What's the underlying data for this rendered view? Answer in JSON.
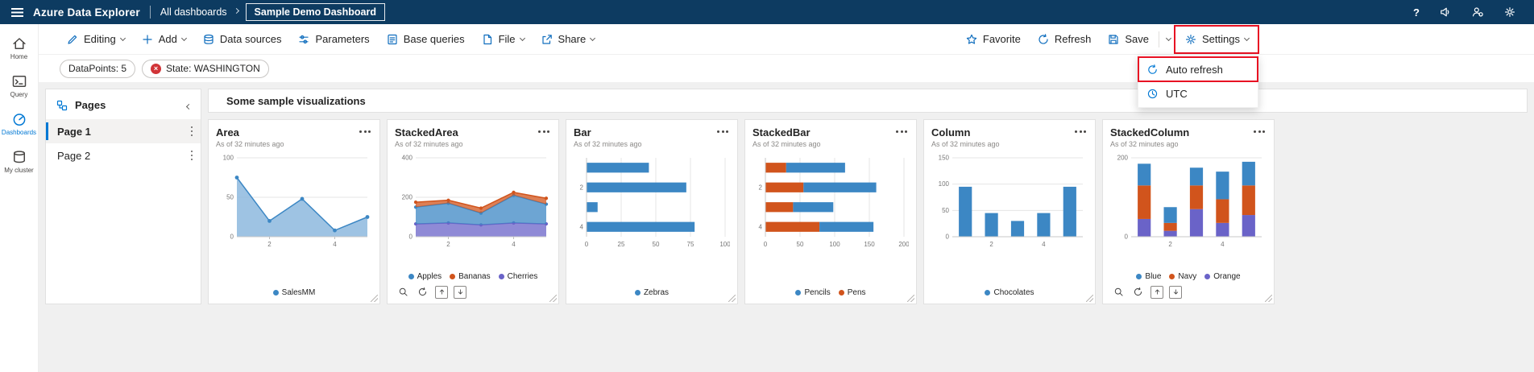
{
  "topbar": {
    "app_title": "Azure Data Explorer",
    "breadcrumb": {
      "root": "All dashboards",
      "current": "Sample Demo Dashboard"
    },
    "right_icons": [
      {
        "name": "help",
        "glyph": "?"
      },
      {
        "name": "feedback",
        "icon": "feedback"
      },
      {
        "name": "account-settings",
        "icon": "account"
      },
      {
        "name": "settings-gear",
        "icon": "gear"
      }
    ]
  },
  "rail": {
    "items": [
      {
        "label": "Home",
        "icon": "home",
        "active": false
      },
      {
        "label": "Query",
        "icon": "query",
        "active": false
      },
      {
        "label": "Dashboards",
        "icon": "dashboards",
        "active": true
      },
      {
        "label": "My cluster",
        "icon": "cluster",
        "active": false
      }
    ]
  },
  "commandbar": {
    "left": [
      {
        "label": "Editing",
        "icon": "pencil",
        "chevron": true
      },
      {
        "label": "Add",
        "icon": "plus",
        "chevron": true
      },
      {
        "label": "Data sources",
        "icon": "database",
        "chevron": false
      },
      {
        "label": "Parameters",
        "icon": "parameters",
        "chevron": false
      },
      {
        "label": "Base queries",
        "icon": "basequeries",
        "chevron": false
      },
      {
        "label": "File",
        "icon": "file",
        "chevron": true
      },
      {
        "label": "Share",
        "icon": "share",
        "chevron": true
      }
    ],
    "right": [
      {
        "label": "Favorite",
        "icon": "star",
        "chevron": false
      },
      {
        "label": "Refresh",
        "icon": "refresh",
        "chevron": false
      },
      {
        "label": "Save",
        "icon": "save",
        "chevron": false,
        "split": true
      },
      {
        "label": "Settings",
        "icon": "gear",
        "chevron": true,
        "highlighted": true
      }
    ]
  },
  "filters": [
    {
      "label": "DataPoints: 5",
      "dismiss": false
    },
    {
      "label": "State: WASHINGTON",
      "dismiss": true
    }
  ],
  "settings_menu": {
    "items": [
      {
        "label": "Auto refresh",
        "icon": "refresh",
        "highlighted": true
      },
      {
        "label": "UTC",
        "icon": "clock",
        "highlighted": false
      }
    ]
  },
  "pages": {
    "title": "Pages",
    "items": [
      {
        "label": "Page 1",
        "active": true
      },
      {
        "label": "Page 2",
        "active": false
      }
    ]
  },
  "text_tile": {
    "text": "Some sample visualizations"
  },
  "tiles": [
    {
      "title": "Area",
      "subtitle": "As of 32 minutes ago",
      "footer_tools": false,
      "legend": [
        {
          "label": "SalesMM",
          "color": "#3c87c4"
        }
      ],
      "chart": {
        "type": "area",
        "xlim": [
          1,
          5
        ],
        "ylim": [
          0,
          100
        ],
        "x": [
          1,
          2,
          3,
          4,
          5
        ],
        "x_ticks": [
          2,
          4
        ],
        "y_ticks": [
          0,
          50,
          100
        ],
        "series": [
          {
            "name": "SalesMM",
            "color": "#3c87c4",
            "fill": "#8db9de",
            "values": [
              75,
              20,
              48,
              8,
              25
            ]
          }
        ]
      }
    },
    {
      "title": "StackedArea",
      "subtitle": "As of 32 minutes ago",
      "footer_tools": true,
      "legend": [
        {
          "label": "Apples",
          "color": "#3c87c4"
        },
        {
          "label": "Bananas",
          "color": "#d1541c"
        },
        {
          "label": "Cherries",
          "color": "#6a63c8"
        }
      ],
      "chart": {
        "type": "stackedarea",
        "xlim": [
          1,
          5
        ],
        "ylim": [
          0,
          400
        ],
        "x": [
          1,
          2,
          3,
          4,
          5
        ],
        "x_ticks": [
          2,
          4
        ],
        "y_ticks": [
          0,
          200,
          400
        ],
        "series": [
          {
            "name": "Cherries",
            "color": "#6a63c8",
            "values": [
              65,
              70,
              60,
              70,
              65
            ]
          },
          {
            "name": "Apples",
            "color": "#3c87c4",
            "values": [
              85,
              100,
              60,
              140,
              100
            ]
          },
          {
            "name": "Bananas",
            "color": "#d1541c",
            "values": [
              25,
              15,
              25,
              15,
              30
            ]
          }
        ]
      }
    },
    {
      "title": "Bar",
      "subtitle": "As of 32 minutes ago",
      "footer_tools": false,
      "legend": [
        {
          "label": "Zebras",
          "color": "#3c87c4"
        }
      ],
      "chart": {
        "type": "bar",
        "xlim": [
          0,
          100
        ],
        "x_ticks": [
          0,
          25,
          50,
          75,
          100
        ],
        "y_ticks": [
          2,
          4
        ],
        "series": [
          {
            "name": "Zebras",
            "color": "#3c87c4",
            "values": [
              45,
              72,
              8,
              78
            ]
          }
        ]
      }
    },
    {
      "title": "StackedBar",
      "subtitle": "As of 32 minutes ago",
      "footer_tools": false,
      "legend": [
        {
          "label": "Pencils",
          "color": "#3c87c4"
        },
        {
          "label": "Pens",
          "color": "#d1541c"
        }
      ],
      "chart": {
        "type": "stackedbar",
        "xlim": [
          0,
          200
        ],
        "x_ticks": [
          0,
          50,
          100,
          150,
          200
        ],
        "y_ticks": [
          2,
          4
        ],
        "series": [
          {
            "name": "Pens",
            "color": "#d1541c",
            "values": [
              30,
              55,
              40,
              78
            ]
          },
          {
            "name": "Pencils",
            "color": "#3c87c4",
            "values": [
              85,
              105,
              58,
              78
            ]
          }
        ]
      }
    },
    {
      "title": "Column",
      "subtitle": "As of 32 minutes ago",
      "footer_tools": false,
      "legend": [
        {
          "label": "Chocolates",
          "color": "#3c87c4"
        }
      ],
      "chart": {
        "type": "column",
        "ylim": [
          0,
          150
        ],
        "y_ticks": [
          0,
          50,
          100,
          150
        ],
        "x_ticks": [
          2,
          4
        ],
        "series": [
          {
            "name": "Chocolates",
            "color": "#3c87c4",
            "values": [
              95,
              45,
              30,
              45,
              95
            ]
          }
        ]
      }
    },
    {
      "title": "StackedColumn",
      "subtitle": "As of 32 minutes ago",
      "footer_tools": true,
      "legend": [
        {
          "label": "Blue",
          "color": "#3c87c4"
        },
        {
          "label": "Navy",
          "color": "#d1541c"
        },
        {
          "label": "Orange",
          "color": "#6a63c8"
        }
      ],
      "chart": {
        "type": "stackedcolumn",
        "ylim": [
          0,
          200
        ],
        "y_ticks": [
          0,
          200
        ],
        "x_ticks": [
          2,
          4
        ],
        "series": [
          {
            "name": "Orange",
            "color": "#6a63c8",
            "values": [
              45,
              15,
              70,
              35,
              55
            ]
          },
          {
            "name": "Navy",
            "color": "#d1541c",
            "values": [
              85,
              20,
              60,
              60,
              75
            ]
          },
          {
            "name": "Blue",
            "color": "#3c87c4",
            "values": [
              55,
              40,
              45,
              70,
              60
            ]
          }
        ]
      }
    }
  ],
  "colors": {
    "accent": "#0078d4",
    "topbar": "#0d3b61",
    "annotation": "#e81123",
    "dash_bg": "#f0f0f0"
  }
}
